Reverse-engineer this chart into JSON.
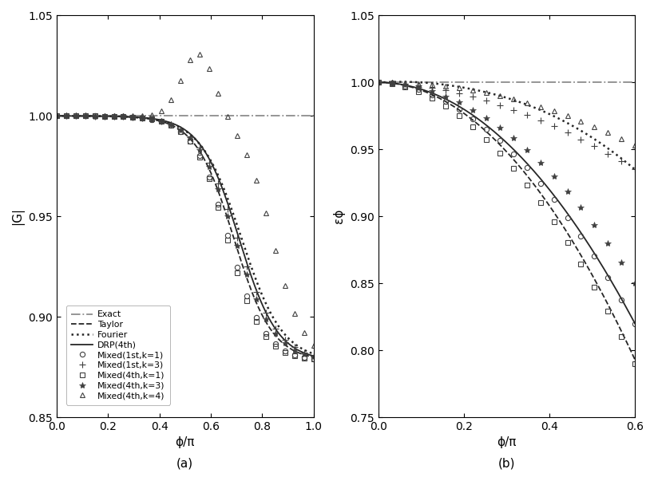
{
  "fig_width": 8.2,
  "fig_height": 5.98,
  "dpi": 100,
  "panel_a": {
    "xlabel": "ϕ/π",
    "ylabel": "|G|",
    "title": "(a)",
    "xlim": [
      0,
      1
    ],
    "ylim": [
      0.85,
      1.05
    ],
    "xticks": [
      0,
      0.2,
      0.4,
      0.6,
      0.8,
      1.0
    ],
    "yticks": [
      0.85,
      0.9,
      0.95,
      1.0,
      1.05
    ]
  },
  "panel_b": {
    "xlabel": "ϕ/π",
    "ylabel": "εϕ",
    "title": "(b)",
    "xlim": [
      0,
      0.6
    ],
    "ylim": [
      0.75,
      1.05
    ],
    "xticks": [
      0,
      0.2,
      0.4,
      0.6
    ],
    "yticks": [
      0.75,
      0.8,
      0.85,
      0.9,
      0.95,
      1.0,
      1.05
    ]
  },
  "legend": {
    "exact": "Exact",
    "taylor": "Taylor",
    "fourier": "Fourier",
    "drp4th": "DRP(4th)",
    "mixed1k1": "Mixed(1st,k=1)",
    "mixed1k3": "Mixed(1st,k=3)",
    "mixed4k1": "Mixed(4th,k=1)",
    "mixed4k3": "Mixed(4th,k=3)",
    "mixed4k4": "Mixed(4th,k=4)"
  }
}
